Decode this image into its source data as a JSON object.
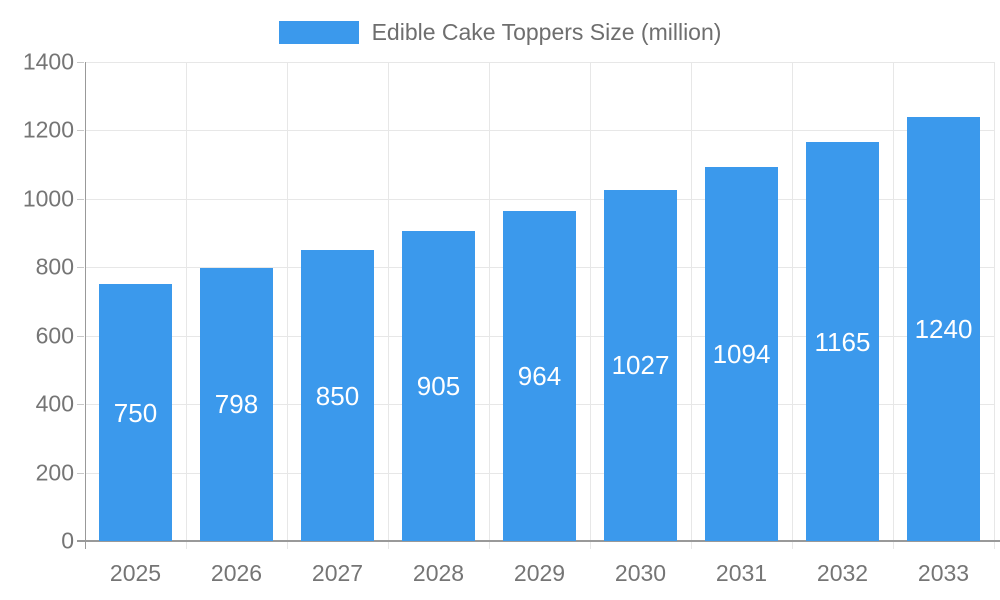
{
  "legend": {
    "label": "Edible Cake Toppers Size (million)"
  },
  "chart_data": {
    "type": "bar",
    "title": "Edible Cake Toppers Size (million)",
    "series_name": "Edible Cake Toppers Size (million)",
    "categories": [
      "2025",
      "2026",
      "2027",
      "2028",
      "2029",
      "2030",
      "2031",
      "2032",
      "2033"
    ],
    "values": [
      750,
      798,
      850,
      905,
      964,
      1027,
      1094,
      1165,
      1240
    ],
    "xlabel": "",
    "ylabel": "",
    "ylim": [
      0,
      1400
    ],
    "y_ticks": [
      0,
      200,
      400,
      600,
      800,
      1000,
      1200,
      1400
    ],
    "grid": true,
    "legend_position": "top",
    "value_labels": "inside-center"
  },
  "colors": {
    "bar": "#3B99EC",
    "grid_line": "#E7E7E7",
    "axis_line": "#999999",
    "tick_mark": "#C8C8C8",
    "tick_label": "#757575",
    "legend_text": "#6E6E6E",
    "value_label": "#FFFFFF",
    "background": "#FFFFFF"
  }
}
